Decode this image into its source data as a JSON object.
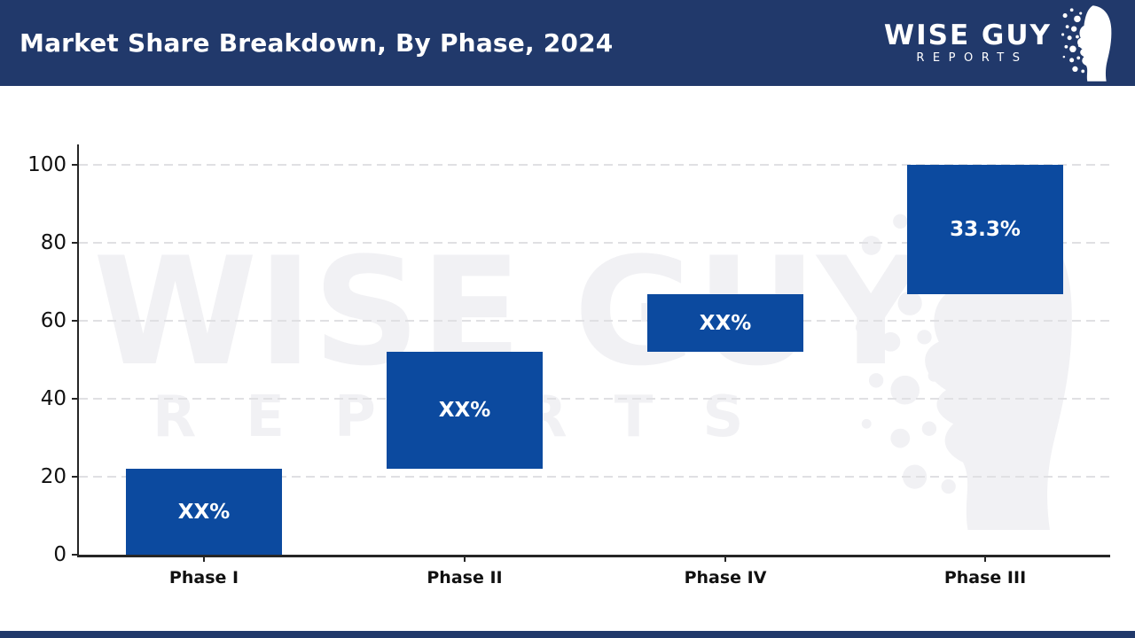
{
  "header": {
    "title": "Market Share Breakdown, By Phase, 2024",
    "logo": {
      "primary": "WISE GUY",
      "secondary": "REPORTS"
    }
  },
  "watermark": {
    "primary": "WISE GUY",
    "secondary": "REPORTS"
  },
  "colors": {
    "header_background": "#21396b",
    "bar_fill": "#0c4a9f",
    "bar_label_text": "#ffffff",
    "gridline": "#e0e0e3",
    "axis": "#262626",
    "watermark": "#f1f1f4"
  },
  "chart_data": {
    "type": "bar",
    "variant": "floating-waterfall-segments",
    "title": "Market Share Breakdown, By Phase, 2024",
    "categories": [
      "Phase I",
      "Phase II",
      "Phase IV",
      "Phase III"
    ],
    "bars": [
      {
        "category": "Phase I",
        "from": 0,
        "to": 22,
        "label": "XX%"
      },
      {
        "category": "Phase II",
        "from": 22,
        "to": 52,
        "label": "XX%"
      },
      {
        "category": "Phase IV",
        "from": 52,
        "to": 66.7,
        "label": "XX%"
      },
      {
        "category": "Phase III",
        "from": 66.7,
        "to": 100,
        "label": "33.3%"
      }
    ],
    "xlabel": "",
    "ylabel": "",
    "ylim": [
      0,
      100
    ],
    "yticks": [
      0,
      20,
      40,
      60,
      80,
      100
    ],
    "grid": "horizontal-dashed",
    "legend": "none"
  }
}
